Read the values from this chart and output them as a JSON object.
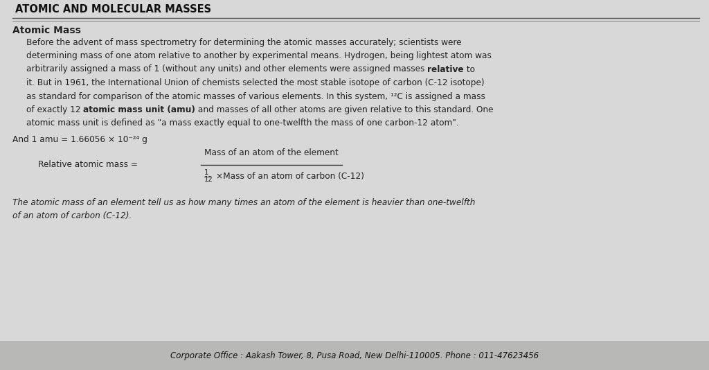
{
  "title": "ATOMIC AND MOLECULAR MASSES",
  "section_heading": "Atomic Mass",
  "p1_lines": [
    [
      [
        "Before the advent of mass spectrometry for determining the atomic masses accurately; scientists were",
        false
      ]
    ],
    [
      [
        "determining mass of one atom relative to another by experimental means. Hydrogen, being lightest atom was",
        false
      ]
    ],
    [
      [
        "arbitrarily assigned a mass of 1 (without any units) and other elements were assigned masses ",
        false
      ],
      [
        "relative",
        true
      ],
      [
        " to",
        false
      ]
    ],
    [
      [
        "it. But in 1961, the International Union of chemists selected the most stable isotope of carbon (C-12 isotope)",
        false
      ]
    ],
    [
      [
        "as standard for comparison of the atomic masses of various elements. In this system, ¹²C is assigned a mass",
        false
      ]
    ],
    [
      [
        "of exactly 12 ",
        false
      ],
      [
        "atomic mass unit (amu)",
        true
      ],
      [
        " and masses of all other atoms are given relative to this standard. One",
        false
      ]
    ],
    [
      [
        "atomic mass unit is defined as \"a mass exactly equal to one-twelfth the mass of one carbon-12 atom\".",
        false
      ]
    ]
  ],
  "amu_line": "And 1 amu = 1.66056 × 10⁻²⁴ g",
  "formula_label": "Relative atomic mass =",
  "formula_numerator": "Mass of an atom of the element",
  "formula_denom_frac_num": "1",
  "formula_denom_frac_den": "12",
  "formula_denom_rest": "×Mass of an atom of carbon (C-12)",
  "p2_lines": [
    "The atomic mass of an element tell us as how many times an atom of the element is heavier than one-twelfth",
    "of an atom of carbon (C-12)."
  ],
  "footer": "Corporate Office : Aakash Tower, 8, Pusa Road, New Delhi-110005. Phone : 011-47623456",
  "bg_color": "#d8d8d8",
  "content_bg": "#e8e8e6",
  "footer_bg": "#b8b8b6",
  "title_color": "#111111",
  "text_color": "#222222",
  "footer_color": "#111111",
  "title_fs": 10.5,
  "heading_fs": 10.0,
  "body_fs": 8.7,
  "footer_fs": 8.5
}
